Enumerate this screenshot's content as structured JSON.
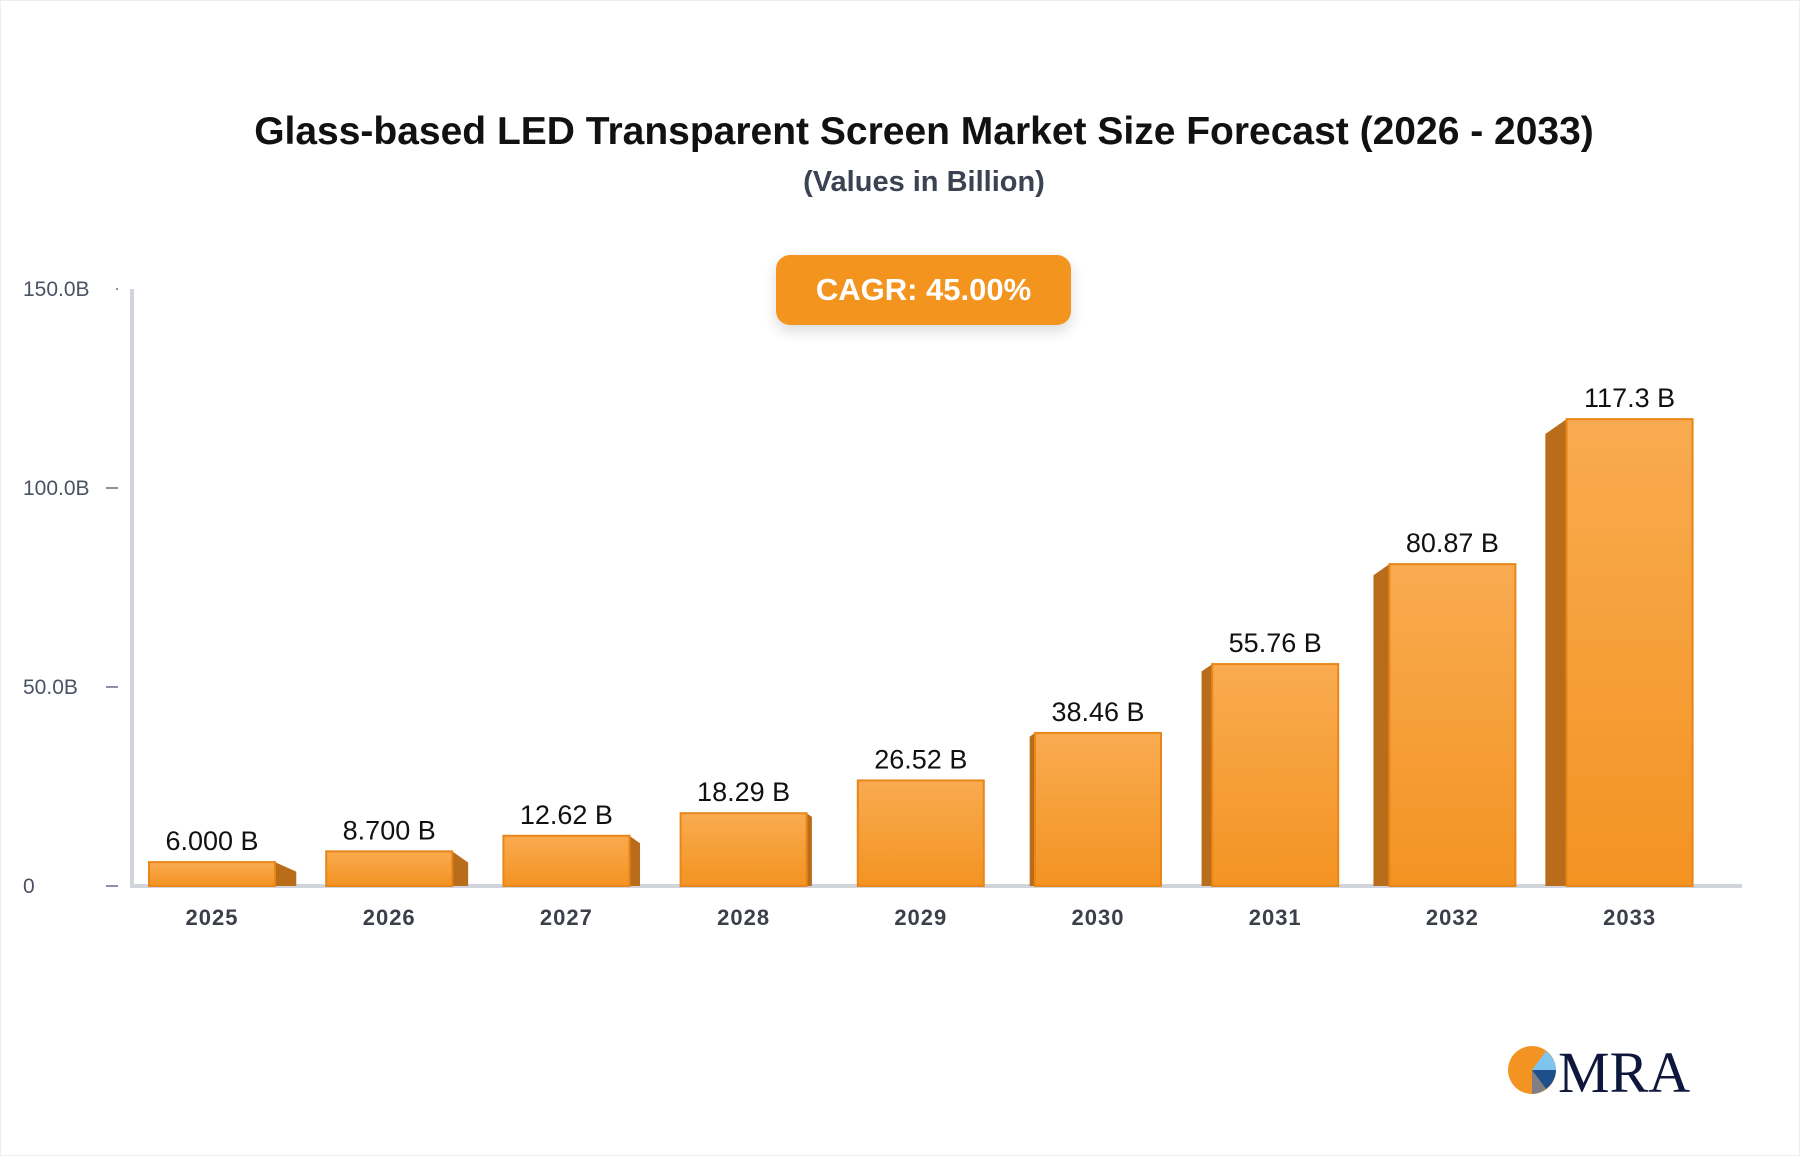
{
  "chart_data": {
    "type": "bar",
    "title": "Glass-based LED Transparent Screen Market Size Forecast (2026 - 2033)",
    "subtitle": "(Values in Billion)",
    "annotation": "CAGR: 45.00%",
    "categories": [
      "2025",
      "2026",
      "2027",
      "2028",
      "2029",
      "2030",
      "2031",
      "2032",
      "2033"
    ],
    "values": [
      6.0,
      8.7,
      12.62,
      18.29,
      26.52,
      38.46,
      55.76,
      80.87,
      117.3
    ],
    "data_labels": [
      "6.000 B",
      "8.700 B",
      "12.62 B",
      "18.29 B",
      "26.52 B",
      "38.46 B",
      "55.76 B",
      "80.87 B",
      "117.3 B"
    ],
    "ylim": [
      0,
      150
    ],
    "yticks": [
      0,
      50,
      100,
      150
    ],
    "ytick_labels": [
      "0",
      "50.0B",
      "100.0B",
      "150.0B"
    ],
    "xlabel": "",
    "ylabel": "",
    "grid": false,
    "colors": {
      "bar_top": "#f9ab50",
      "bar_bottom": "#f39322",
      "bar_side": "#b96d1a",
      "accent": "#f3941f"
    }
  },
  "logo": {
    "text": "MRA"
  }
}
